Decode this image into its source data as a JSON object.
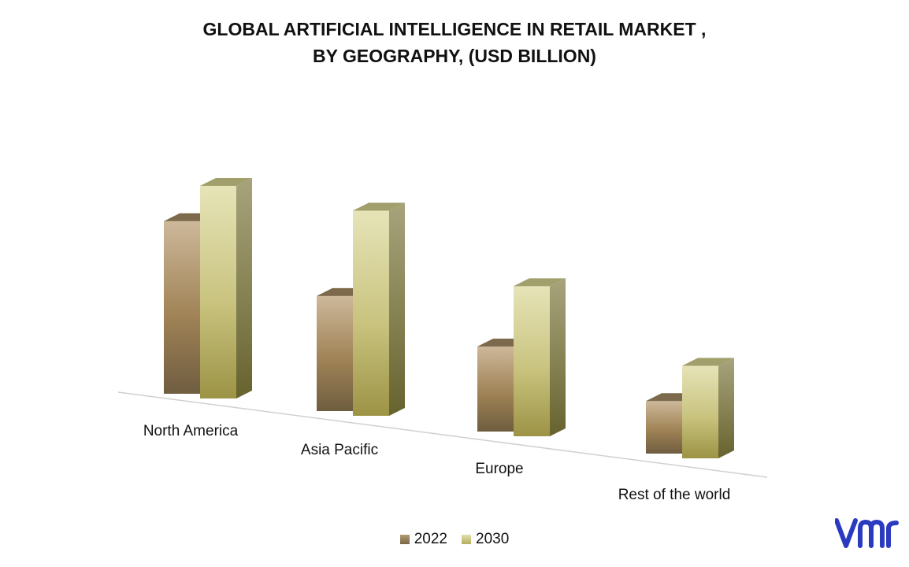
{
  "title": {
    "line1": "GLOBAL ARTIFICIAL INTELLIGENCE IN RETAIL MARKET ,",
    "line2": "BY GEOGRAPHY, (USD BILLION)"
  },
  "legend": [
    {
      "label": "2022",
      "color": "#8f7a56"
    },
    {
      "label": "2030",
      "color": "#c8c48a"
    }
  ],
  "brand": {
    "logo_text": "vmr",
    "color": "#2b3bbf"
  },
  "chart_data": {
    "type": "bar",
    "style": "3d-clustered-column",
    "title": "GLOBAL ARTIFICIAL INTELLIGENCE IN RETAIL MARKET , BY GEOGRAPHY, (USD BILLION)",
    "categories": [
      "North America",
      "Asia Pacific",
      "Europe",
      "Rest of the world"
    ],
    "series": [
      {
        "name": "2022",
        "values": [
          6.9,
          4.6,
          3.4,
          2.1
        ],
        "color": "#8f7a56"
      },
      {
        "name": "2030",
        "values": [
          8.5,
          8.2,
          6.0,
          3.7
        ],
        "color": "#c8c48a"
      }
    ],
    "ylim": [
      0,
      9
    ],
    "grid": false,
    "legend_position": "bottom",
    "axis_labels_visible": false
  }
}
